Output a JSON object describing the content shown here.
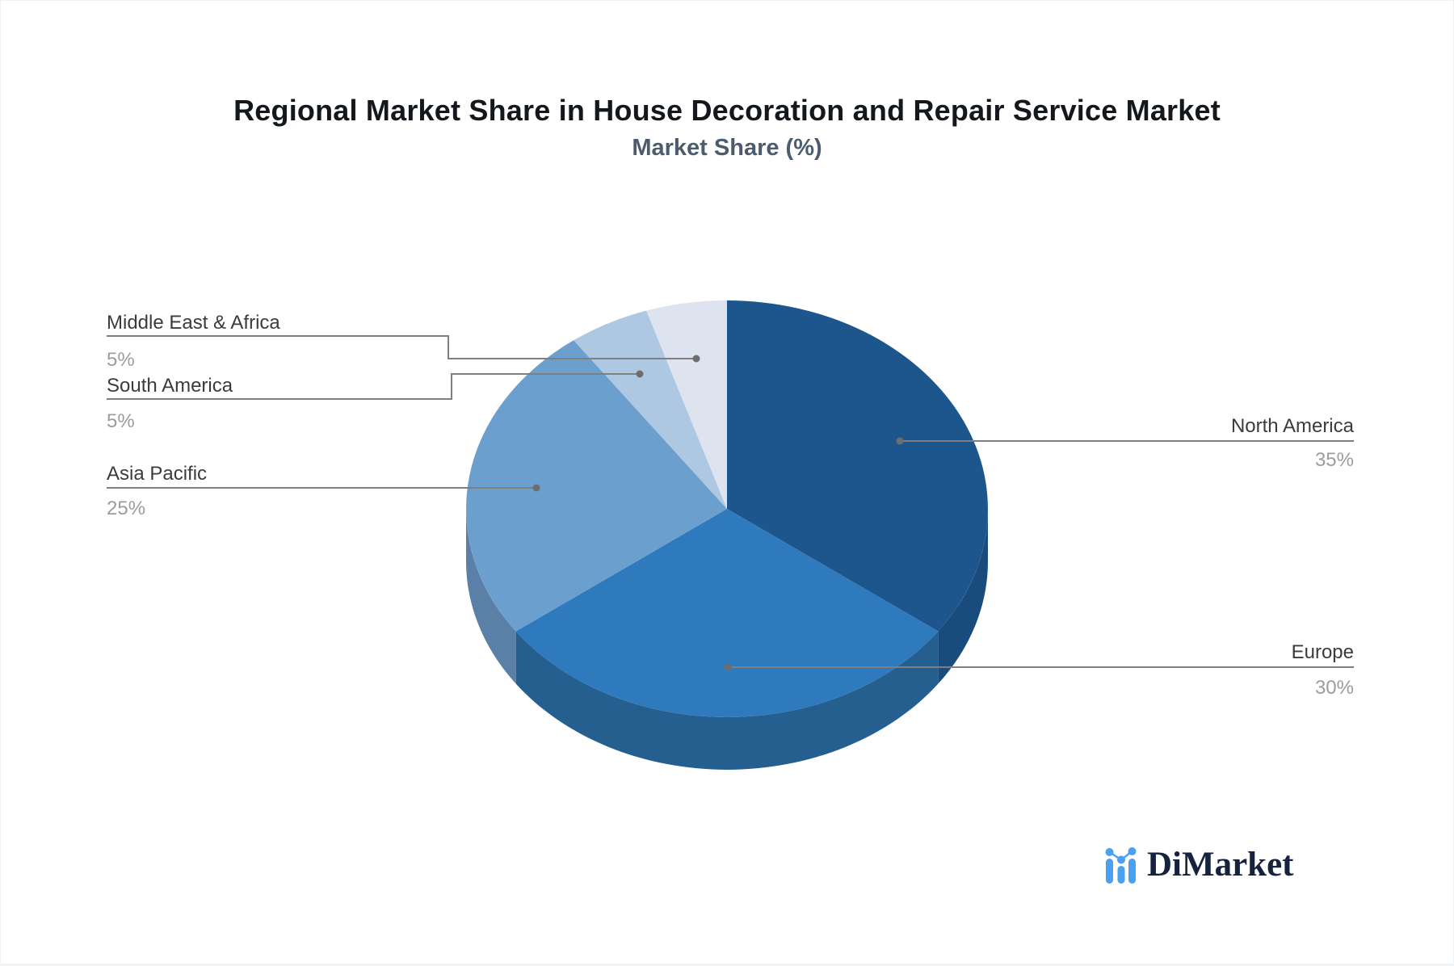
{
  "title": "Regional Market Share in House Decoration and Repair Service Market",
  "subtitle": "Market Share (%)",
  "logo": {
    "text": "DiMarket",
    "icon": "bar-line-chart-icon",
    "icon_color": "#4AA0F2",
    "text_color": "#15233C"
  },
  "colors": {
    "background": "#FFFFFF",
    "title_text": "#14181D",
    "subtitle_text": "#4C5C6E",
    "label_text": "#3B3B3B",
    "percent_text": "#9C9C9C",
    "connector_line": "#7F7F7F",
    "connector_dot": "#6D6D6D"
  },
  "chart_data": {
    "type": "pie",
    "title": "Regional Market Share in House Decoration and Repair Service Market",
    "subtitle": "Market Share (%)",
    "unit": "%",
    "style": "3d-pie",
    "start_angle_deg": 0,
    "direction": "clockwise",
    "legend": "none",
    "labels_position": "outside, name above leader line, percent below",
    "slices": [
      {
        "label": "North America",
        "value": 35,
        "display": "35%",
        "color": "#1D568C",
        "side_color": "#1A4B7D"
      },
      {
        "label": "Europe",
        "value": 30,
        "display": "30%",
        "color": "#2E7ABD",
        "side_color": "#255F8F"
      },
      {
        "label": "Asia Pacific",
        "value": 25,
        "display": "25%",
        "color": "#6B9FCE",
        "side_color": "#5B80A7"
      },
      {
        "label": "South America",
        "value": 5,
        "display": "5%",
        "color": "#AFC8E2"
      },
      {
        "label": "Middle East & Africa",
        "value": 5,
        "display": "5%",
        "color": "#DDE4EF"
      }
    ]
  }
}
